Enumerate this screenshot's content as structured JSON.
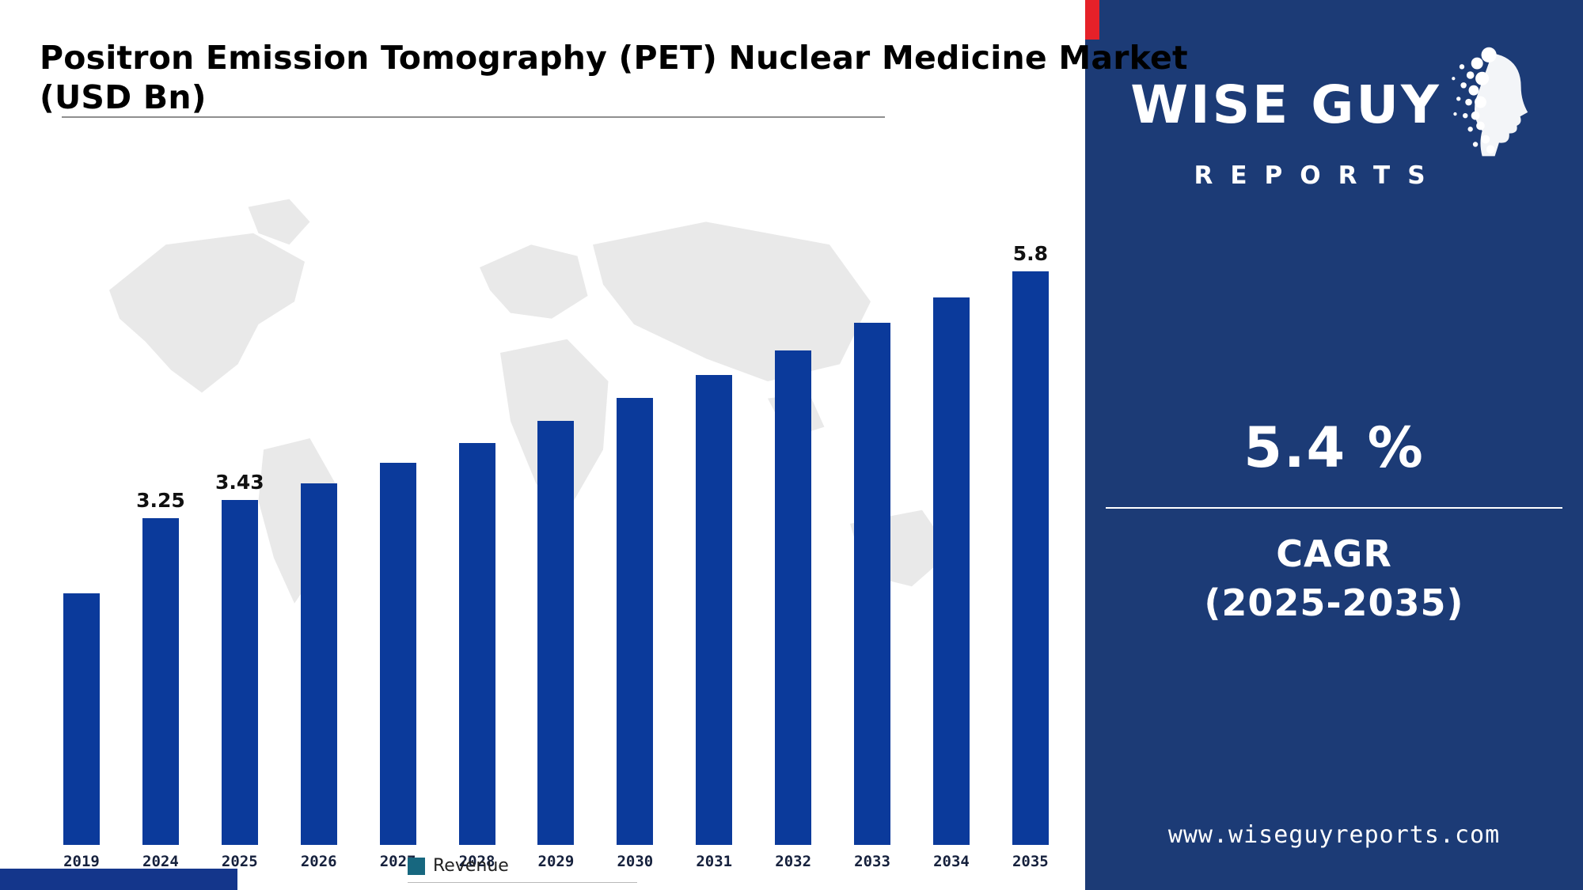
{
  "title": "Positron Emission Tomography (PET) Nuclear Medicine Market (USD Bn)",
  "chart_data": {
    "type": "bar",
    "title": "Positron Emission Tomography (PET) Nuclear Medicine Market (USD Bn)",
    "categories": [
      "2019",
      "2024",
      "2025",
      "2026",
      "2027",
      "2028",
      "2029",
      "2030",
      "2031",
      "2032",
      "2033",
      "2034",
      "2035"
    ],
    "values": [
      2.5,
      3.25,
      3.43,
      3.6,
      3.8,
      4.0,
      4.22,
      4.45,
      4.68,
      4.92,
      5.2,
      5.45,
      5.8
    ],
    "data_labels": [
      "",
      "3.25",
      "3.43",
      "",
      "",
      "",
      "",
      "",
      "",
      "",
      "",
      "",
      "5.8"
    ],
    "xlabel": "",
    "ylabel": "",
    "ylim": [
      0,
      6
    ],
    "grid": false,
    "legend": "Revenue",
    "legend_position": "bottom",
    "bar_color": "#0b3a9b",
    "legend_swatch_color": "#17677f"
  },
  "side_panel": {
    "logo_line1": "WISE GUY",
    "logo_line2": "REPORTS",
    "cagr_value": "5.4 %",
    "cagr_label": "CAGR",
    "cagr_period": "(2025-2035)",
    "website": "www.wiseguyreports.com",
    "bg_color": "#1c3b76",
    "accent_color": "#e62129"
  }
}
